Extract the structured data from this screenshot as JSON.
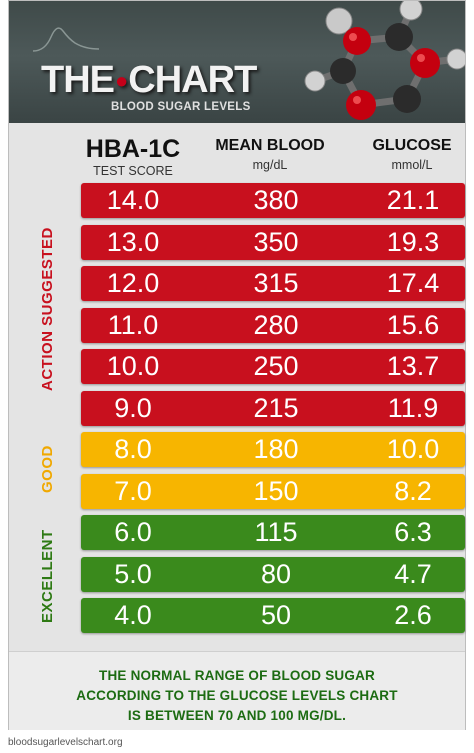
{
  "header": {
    "title_part1": "THE",
    "title_part2": "CHART",
    "subtitle": "BLOOD SUGAR LEVELS"
  },
  "columns": {
    "hba1c_main": "HBA-1C",
    "hba1c_sub": "TEST SCORE",
    "mean_main": "MEAN BLOOD",
    "mean_sub": "mg/dL",
    "glucose_main": "GLUCOSE",
    "glucose_sub": "mmol/L"
  },
  "rows": [
    {
      "hba1c": "14.0",
      "mgdl": "380",
      "mmol": "21.1",
      "category": "action"
    },
    {
      "hba1c": "13.0",
      "mgdl": "350",
      "mmol": "19.3",
      "category": "action"
    },
    {
      "hba1c": "12.0",
      "mgdl": "315",
      "mmol": "17.4",
      "category": "action"
    },
    {
      "hba1c": "11.0",
      "mgdl": "280",
      "mmol": "15.6",
      "category": "action"
    },
    {
      "hba1c": "10.0",
      "mgdl": "250",
      "mmol": "13.7",
      "category": "action"
    },
    {
      "hba1c": "9.0",
      "mgdl": "215",
      "mmol": "11.9",
      "category": "action"
    },
    {
      "hba1c": "8.0",
      "mgdl": "180",
      "mmol": "10.0",
      "category": "good"
    },
    {
      "hba1c": "7.0",
      "mgdl": "150",
      "mmol": "8.2",
      "category": "good"
    },
    {
      "hba1c": "6.0",
      "mgdl": "115",
      "mmol": "6.3",
      "category": "excellent"
    },
    {
      "hba1c": "5.0",
      "mgdl": "80",
      "mmol": "4.7",
      "category": "excellent"
    },
    {
      "hba1c": "4.0",
      "mgdl": "50",
      "mmol": "2.6",
      "category": "excellent"
    }
  ],
  "categories": {
    "action": {
      "label": "ACTION SUGGESTED",
      "color": "#c8101e",
      "text_color": "#c8101e"
    },
    "good": {
      "label": "GOOD",
      "color": "#f7b500",
      "text_color": "#f0a800"
    },
    "excellent": {
      "label": "EXCELLENT",
      "color": "#3a8a1c",
      "text_color": "#2e7a14"
    }
  },
  "footer": {
    "line1": "THE NORMAL RANGE OF BLOOD SUGAR",
    "line2": "ACCORDING TO THE GLUCOSE LEVELS CHART",
    "line3": "IS BETWEEN 70 AND 100 MG/DL."
  },
  "site": "bloodsugarlevelschart.org"
}
